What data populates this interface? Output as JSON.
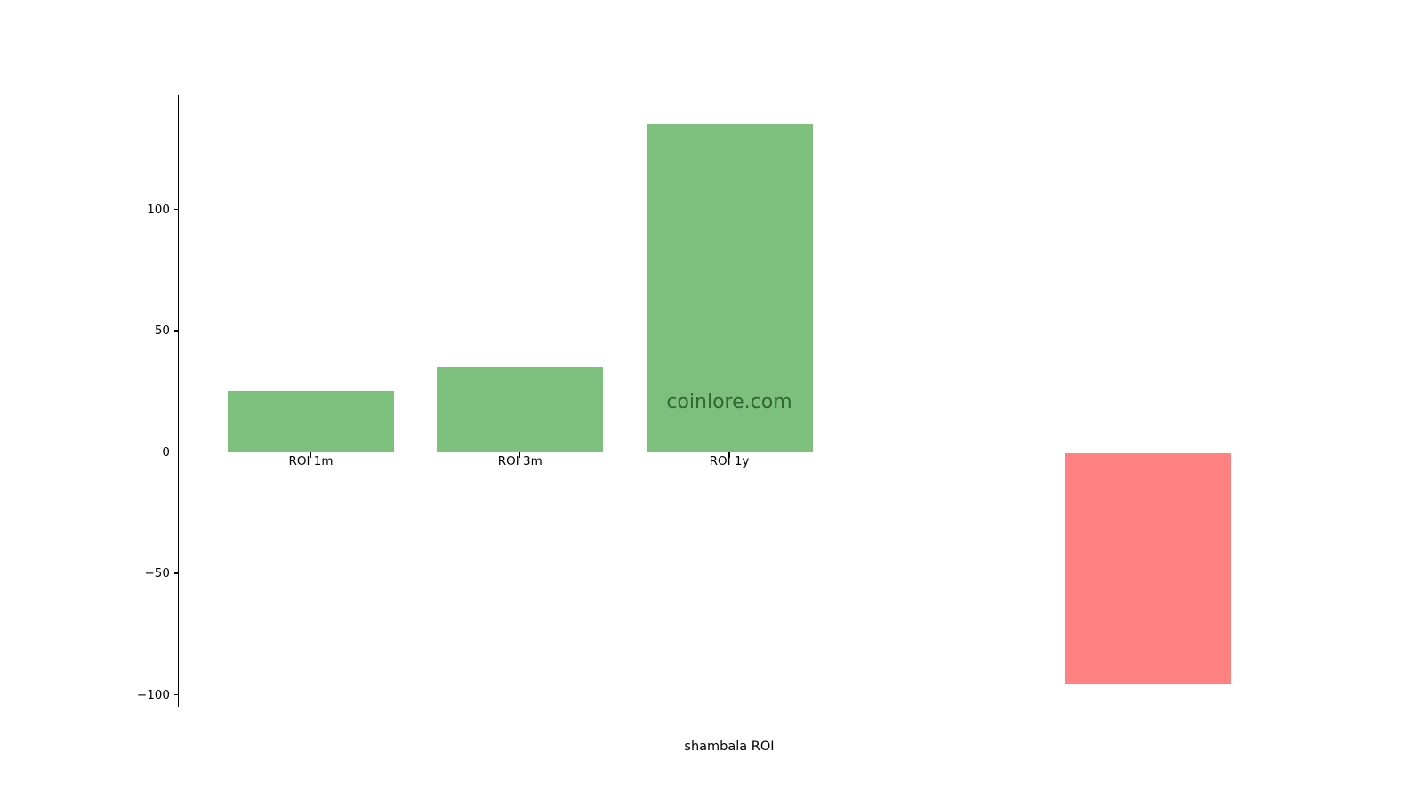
{
  "page": {
    "background": "#ffffff"
  },
  "watermark": {
    "text": "coinlore.com",
    "color": "#2f6632"
  },
  "chart_data": {
    "type": "bar",
    "title": "",
    "xlabel": "shambala ROI",
    "ylabel": "",
    "categories": [
      "ROI 1m",
      "ROI 3m",
      "ROI 1y",
      "",
      ""
    ],
    "values": [
      25,
      35,
      135,
      0,
      -95
    ],
    "yticks": [
      {
        "value": 100,
        "label": "100"
      },
      {
        "value": 50,
        "label": "50"
      },
      {
        "value": 0,
        "label": "0"
      },
      {
        "value": -50,
        "label": "−50"
      },
      {
        "value": -100,
        "label": "−100"
      }
    ],
    "ylim": [
      -105,
      148
    ],
    "grid": false,
    "legend_position": "none",
    "bar_colors": {
      "positive": "#7dc07d",
      "negative": "#ff8181"
    },
    "axis_color": "#000000"
  }
}
